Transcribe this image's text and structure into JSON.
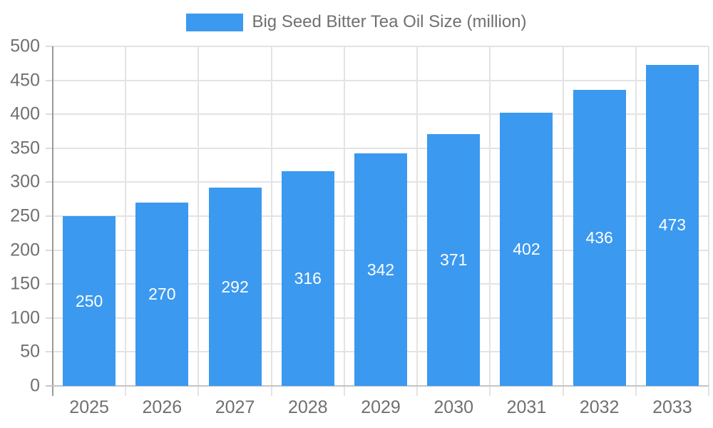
{
  "chart_data": {
    "type": "bar",
    "legend_label": "Big Seed Bitter Tea Oil Size (million)",
    "categories": [
      "2025",
      "2026",
      "2027",
      "2028",
      "2029",
      "2030",
      "2031",
      "2032",
      "2033"
    ],
    "series": [
      {
        "name": "Big Seed Bitter Tea Oil Size (million)",
        "values": [
          250,
          270,
          292,
          316,
          342,
          371,
          402,
          436,
          473
        ]
      }
    ],
    "value_labels": [
      "250",
      "270",
      "292",
      "316",
      "342",
      "371",
      "402",
      "436",
      "473"
    ],
    "yticks": [
      0,
      50,
      100,
      150,
      200,
      250,
      300,
      350,
      400,
      450,
      500
    ],
    "ylim": [
      0,
      500
    ],
    "ytick_step": 50,
    "grid": true,
    "legend_position": "top-center",
    "value_label_position": "inside-middle",
    "xlabel": "",
    "ylabel": ""
  },
  "colors": {
    "bar": "#3B99F0",
    "legend_swatch": "#3B99F0",
    "axis_label": "#707070",
    "legend_text": "#707070",
    "grid_line": "#E3E3E3",
    "axis_line": "#999999",
    "baseline": "#C4C4C4",
    "tick_line": "#DCDCDC",
    "value_label": "#FFFFFF",
    "background": "#FFFFFF"
  }
}
